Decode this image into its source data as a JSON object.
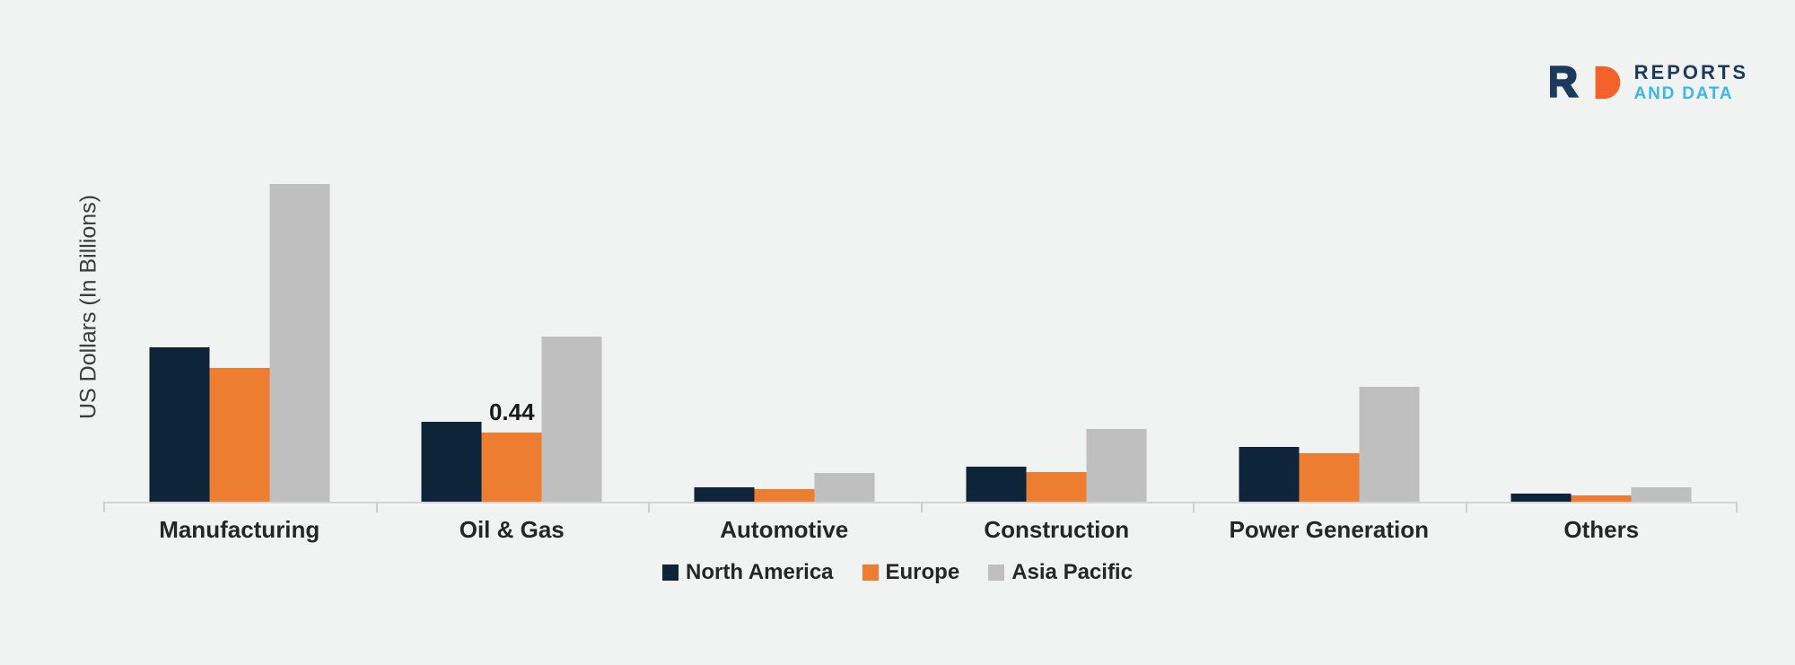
{
  "page": {
    "background": "#f1f2f2"
  },
  "logo": {
    "monogram_r": "R",
    "monogram_d": "D",
    "line1": "REPORTS",
    "line2": "AND DATA",
    "navy": "#1c3a5e",
    "blue": "#39b7e8",
    "orange": "#f2622a"
  },
  "chart_data": {
    "type": "bar",
    "title": "",
    "xlabel": "",
    "ylabel": "US Dollars (In Billions)",
    "categories": [
      "Manufacturing",
      "Oil & Gas",
      "Automotive",
      "Construction",
      "Power Generation",
      "Others"
    ],
    "series": [
      {
        "name": "North America",
        "color": "#0d2439",
        "values": [
          0.98,
          0.51,
          0.09,
          0.22,
          0.35,
          0.05
        ]
      },
      {
        "name": "Europe",
        "color": "#ed7d31",
        "values": [
          0.85,
          0.44,
          0.08,
          0.19,
          0.31,
          0.04
        ]
      },
      {
        "name": "Asia Pacific",
        "color": "#bfbfbf",
        "values": [
          2.02,
          1.05,
          0.18,
          0.46,
          0.73,
          0.09
        ]
      }
    ],
    "data_labels": [
      {
        "category_index": 1,
        "series_index": 1,
        "text": "0.44"
      }
    ],
    "ylim": [
      0,
      2.45
    ],
    "grid": false,
    "y_ticks_visible": false,
    "legend_position": "bottom",
    "axis_color": "#d5d5d5"
  }
}
